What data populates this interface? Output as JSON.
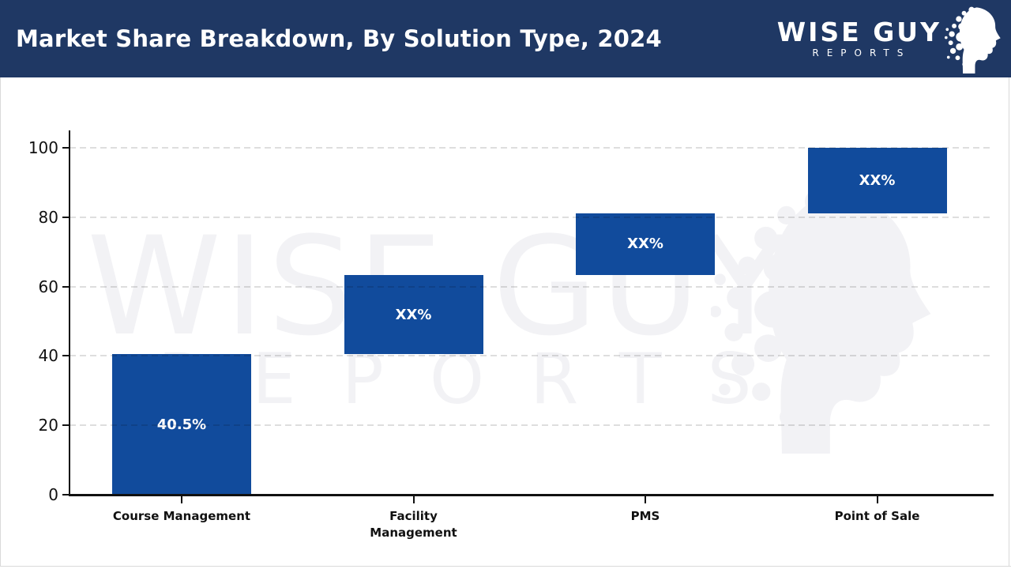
{
  "header": {
    "title": "Market Share Breakdown, By Solution Type, 2024",
    "brand": {
      "name": "WISE GUY",
      "sub": "REPORTS"
    }
  },
  "watermark": {
    "line1": "WISE GUY",
    "line2": "REPORTS"
  },
  "chart_data": {
    "type": "bar",
    "subtype": "waterfall",
    "title": "Market Share Breakdown, By Solution Type, 2024",
    "xlabel": "",
    "ylabel": "",
    "ylim": [
      0,
      105
    ],
    "yticks": [
      0,
      20,
      40,
      60,
      80,
      100
    ],
    "grid": "horizontal-dashed",
    "legend": "none",
    "bar_color": "#114b9c",
    "bar_label_color": "#ffffff",
    "categories": [
      "Course Management",
      "Facility\nManagement",
      "PMS",
      "Point of Sale"
    ],
    "segments": [
      {
        "category": "Course Management",
        "start": 0,
        "end": 40.5,
        "label": "40.5%"
      },
      {
        "category": "Facility Management",
        "start": 40.5,
        "end": 63.3,
        "label": "XX%"
      },
      {
        "category": "PMS",
        "start": 63.3,
        "end": 81.2,
        "label": "XX%"
      },
      {
        "category": "Point of Sale",
        "start": 81.2,
        "end": 100,
        "label": "XX%"
      }
    ]
  }
}
